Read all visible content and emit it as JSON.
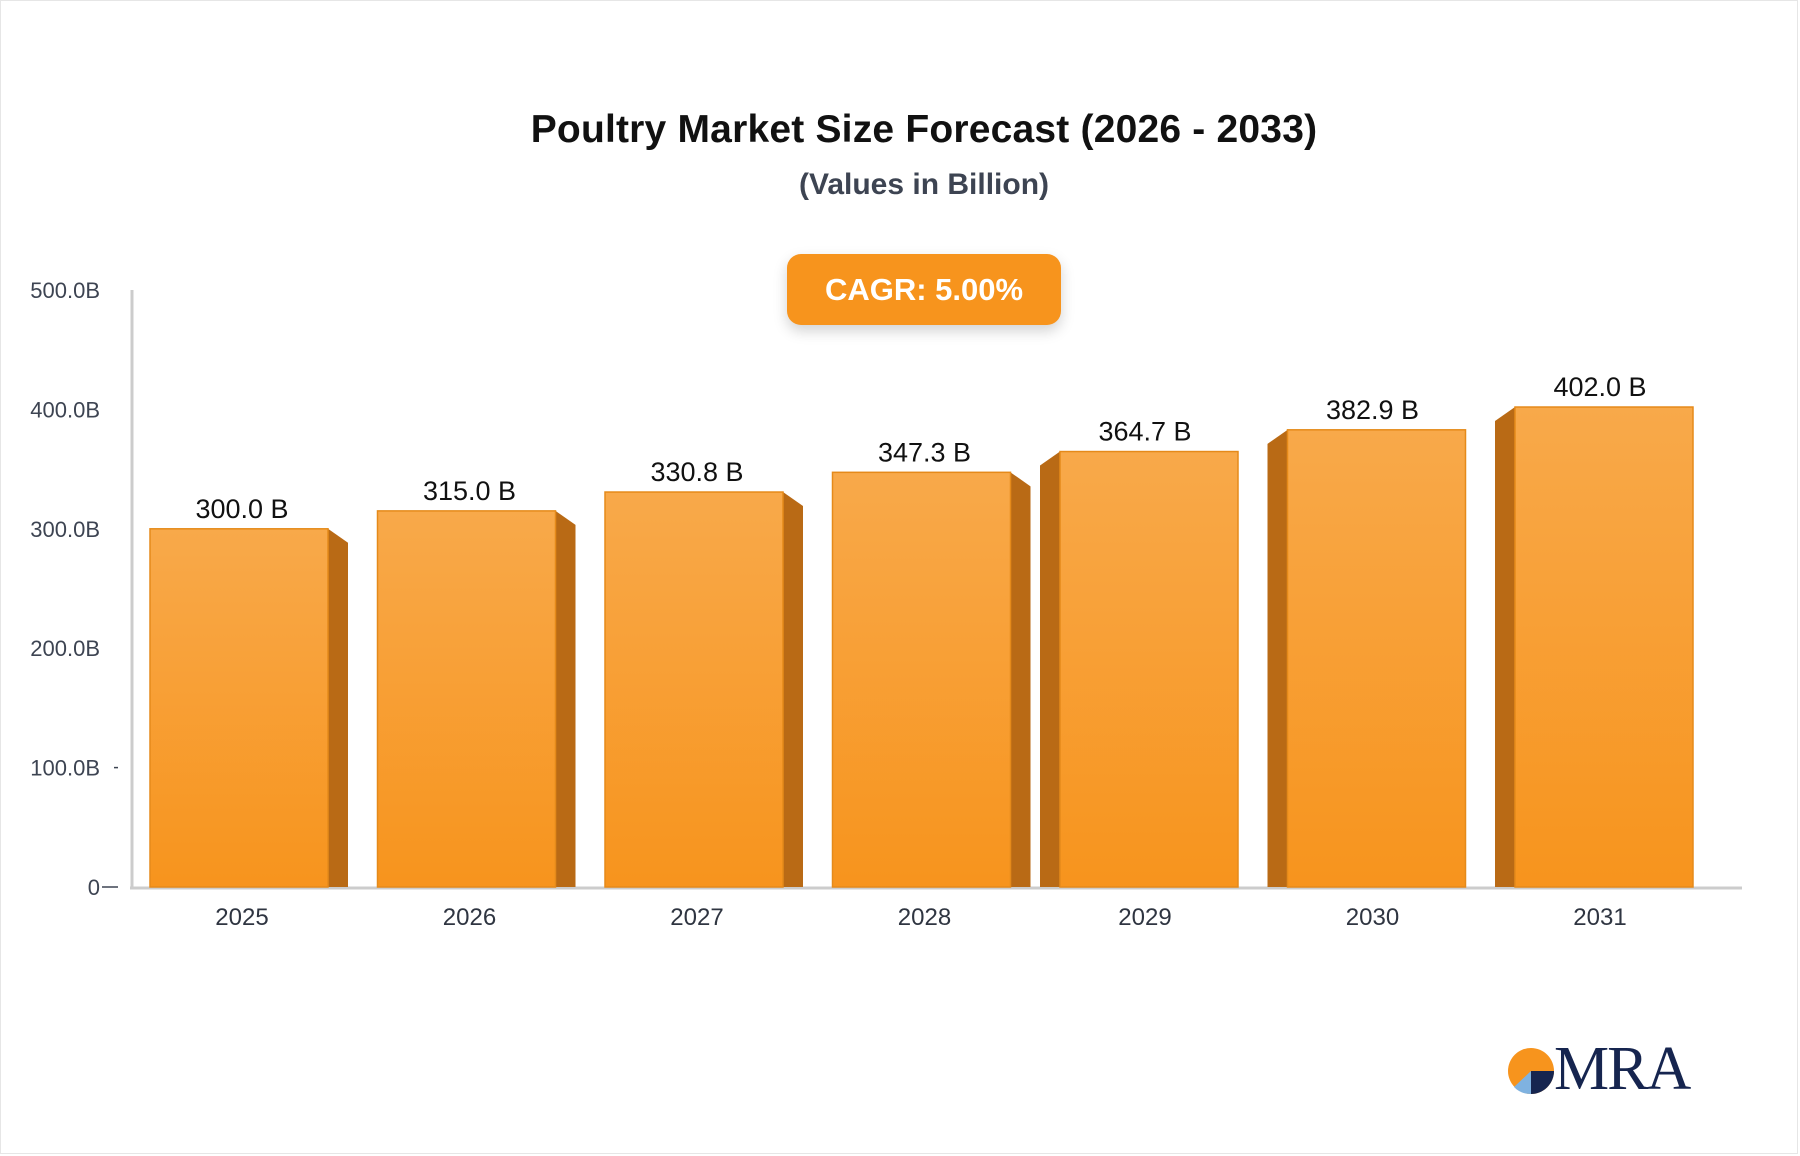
{
  "chart_data": {
    "type": "bar",
    "title": "Poultry Market Size Forecast (2026 - 2033)",
    "subtitle": "(Values in Billion)",
    "annotation": "CAGR: 5.00%",
    "categories": [
      "2025",
      "2026",
      "2027",
      "2028",
      "2029",
      "2030",
      "2031"
    ],
    "values": [
      300.0,
      315.0,
      330.8,
      347.3,
      364.7,
      382.9,
      402.0
    ],
    "value_labels": [
      "300.0 B",
      "315.0 B",
      "330.8 B",
      "347.3 B",
      "364.7 B",
      "382.9 B",
      "402.0 B"
    ],
    "ylim": [
      0,
      500
    ],
    "y_ticks": [
      0,
      100,
      200,
      300,
      400,
      500
    ],
    "y_tick_labels": [
      "0",
      "100.0B",
      "200.0B",
      "300.0B",
      "400.0B",
      "500.0B"
    ],
    "grid": false,
    "colors": {
      "bar": "#f7941d",
      "bar_top": "#f8a94a",
      "bar_side": "#b96a15",
      "axis": "#cccccc"
    }
  },
  "brand": {
    "logo_text": "MRA"
  }
}
